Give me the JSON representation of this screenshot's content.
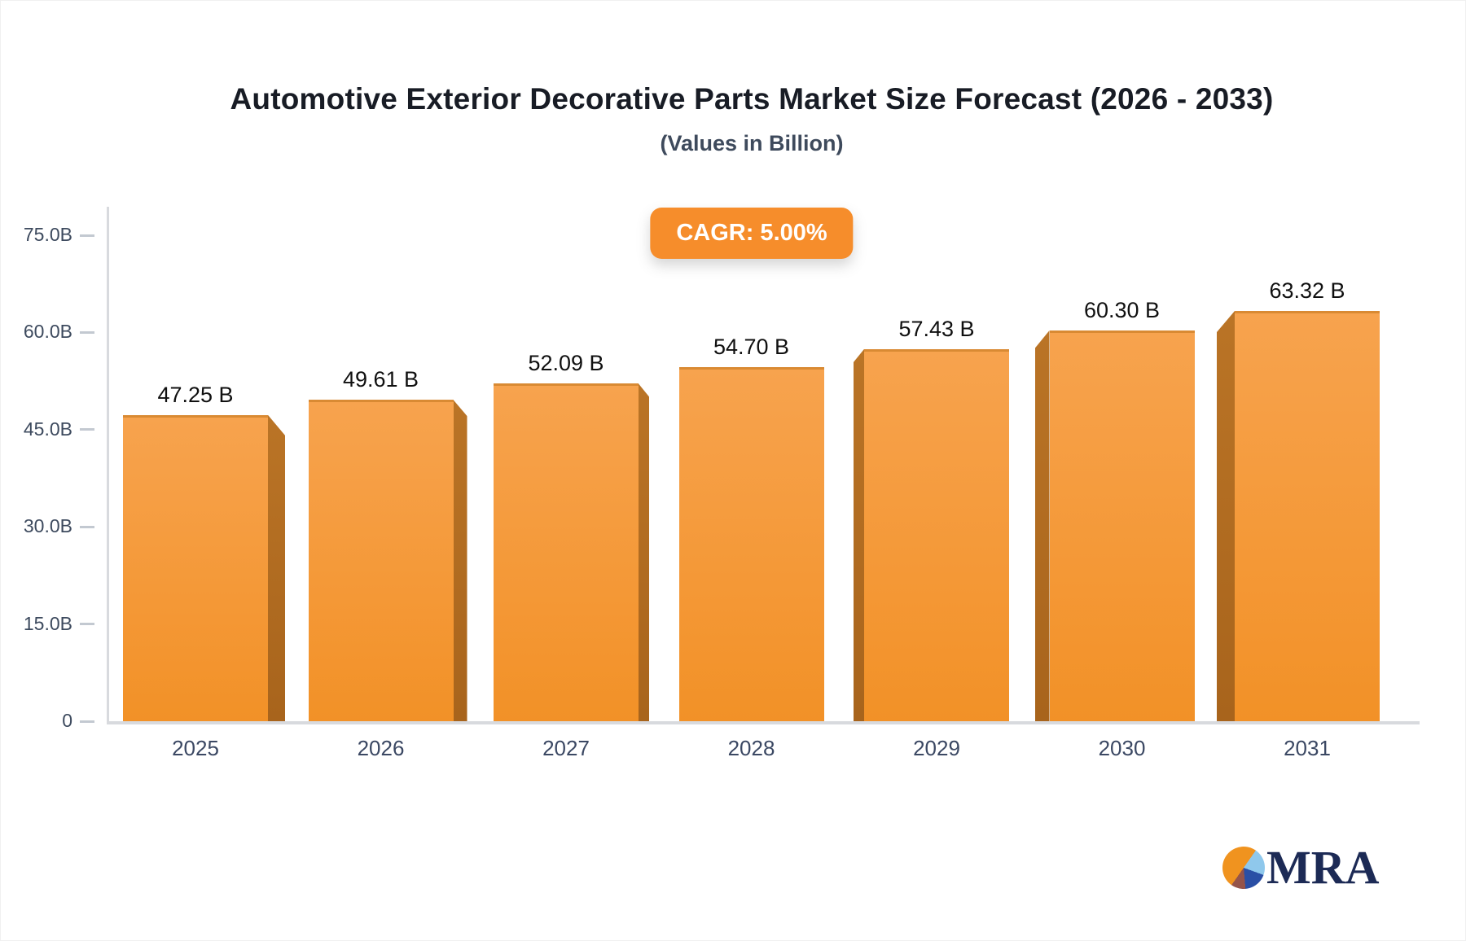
{
  "header": {
    "title": "Automotive Exterior Decorative Parts Market Size Forecast (2026 - 2033)",
    "subtitle": "(Values in Billion)",
    "cagr_badge": "CAGR: 5.00%"
  },
  "chart_data": {
    "type": "bar",
    "title": "Automotive Exterior Decorative Parts Market Size Forecast (2026 - 2033)",
    "subtitle": "(Values in Billion)",
    "annotation": "CAGR: 5.00%",
    "categories": [
      "2025",
      "2026",
      "2027",
      "2028",
      "2029",
      "2030",
      "2031"
    ],
    "values": [
      47.25,
      49.61,
      52.09,
      54.7,
      57.43,
      60.3,
      63.32
    ],
    "value_labels": [
      "47.25 B",
      "49.61 B",
      "52.09 B",
      "54.70 B",
      "57.43 B",
      "60.30 B",
      "63.32 B"
    ],
    "xlabel": "",
    "ylabel": "",
    "ylim": [
      0,
      75
    ],
    "yticks": [
      75,
      60,
      45,
      30,
      15,
      0
    ],
    "ytick_labels": [
      "75.0B",
      "60.0B",
      "45.0B",
      "30.0B",
      "15.0B",
      "0"
    ],
    "grid": false,
    "legend": false,
    "style": "3d-orange-columns"
  },
  "colors": {
    "bar_top": "#f7a34e",
    "bar_bottom": "#f29127",
    "bar_side": "#a8641c",
    "bar_edge": "#d98a33",
    "badge_bg": "#f68d2b",
    "badge_text": "#ffffff",
    "axis_line": "#d8dade",
    "tick_label": "#3d4a5e",
    "x_label": "#3b4863",
    "value_label": "#101010",
    "title": "#181c25",
    "subtitle": "#3e4a5c",
    "logo_navy": "#1c2a55",
    "logo_orange": "#f0931f",
    "logo_lightblue": "#8fc8ec",
    "logo_blue": "#2a4fa5",
    "logo_maroon": "#95544a"
  },
  "footer": {
    "logo_text": "MRA"
  }
}
